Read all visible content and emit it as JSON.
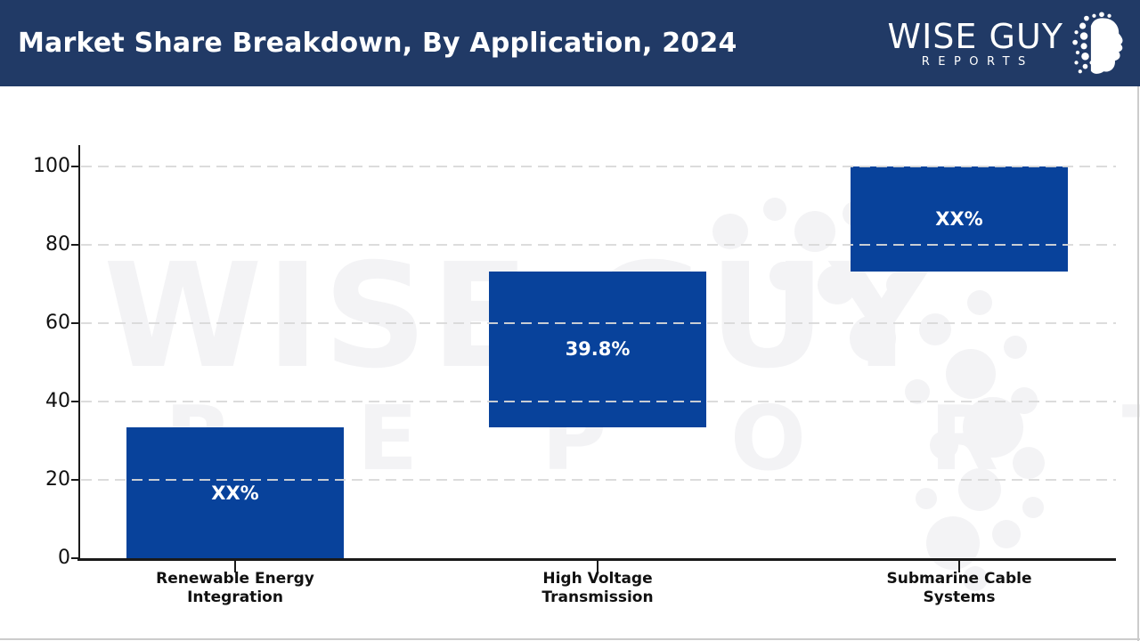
{
  "header": {
    "title": "Market Share Breakdown, By Application, 2024",
    "bg_color": "#213a66",
    "logo": {
      "line1": "WISE GUY",
      "line2": "REPORTS"
    }
  },
  "watermark": {
    "line1": "WISE GUY",
    "line2": "R E P O R T S"
  },
  "chart_data": {
    "type": "bar",
    "subtype": "waterfall-stacked",
    "title": "Market Share Breakdown, By Application, 2024",
    "categories": [
      {
        "name": "Renewable Energy Integration",
        "lines": [
          "Renewable Energy",
          "Integration"
        ]
      },
      {
        "name": "High Voltage Transmission",
        "lines": [
          "High Voltage",
          "Transmission"
        ]
      },
      {
        "name": "Submarine Cable Systems",
        "lines": [
          "Submarine Cable",
          "Systems"
        ]
      }
    ],
    "segments": [
      {
        "category": "Renewable Energy Integration",
        "start": 0,
        "end": 33.4,
        "label": "XX%"
      },
      {
        "category": "High Voltage Transmission",
        "start": 33.4,
        "end": 73.2,
        "label": "39.8%"
      },
      {
        "category": "Submarine Cable Systems",
        "start": 73.2,
        "end": 100,
        "label": "XX%"
      }
    ],
    "yticks": [
      0,
      20,
      40,
      60,
      80,
      100
    ],
    "ylim": [
      0,
      105
    ],
    "xlabel": "",
    "ylabel": "",
    "bar_color": "#08429b",
    "grid": "horizontal-dashed",
    "legend": "none"
  }
}
